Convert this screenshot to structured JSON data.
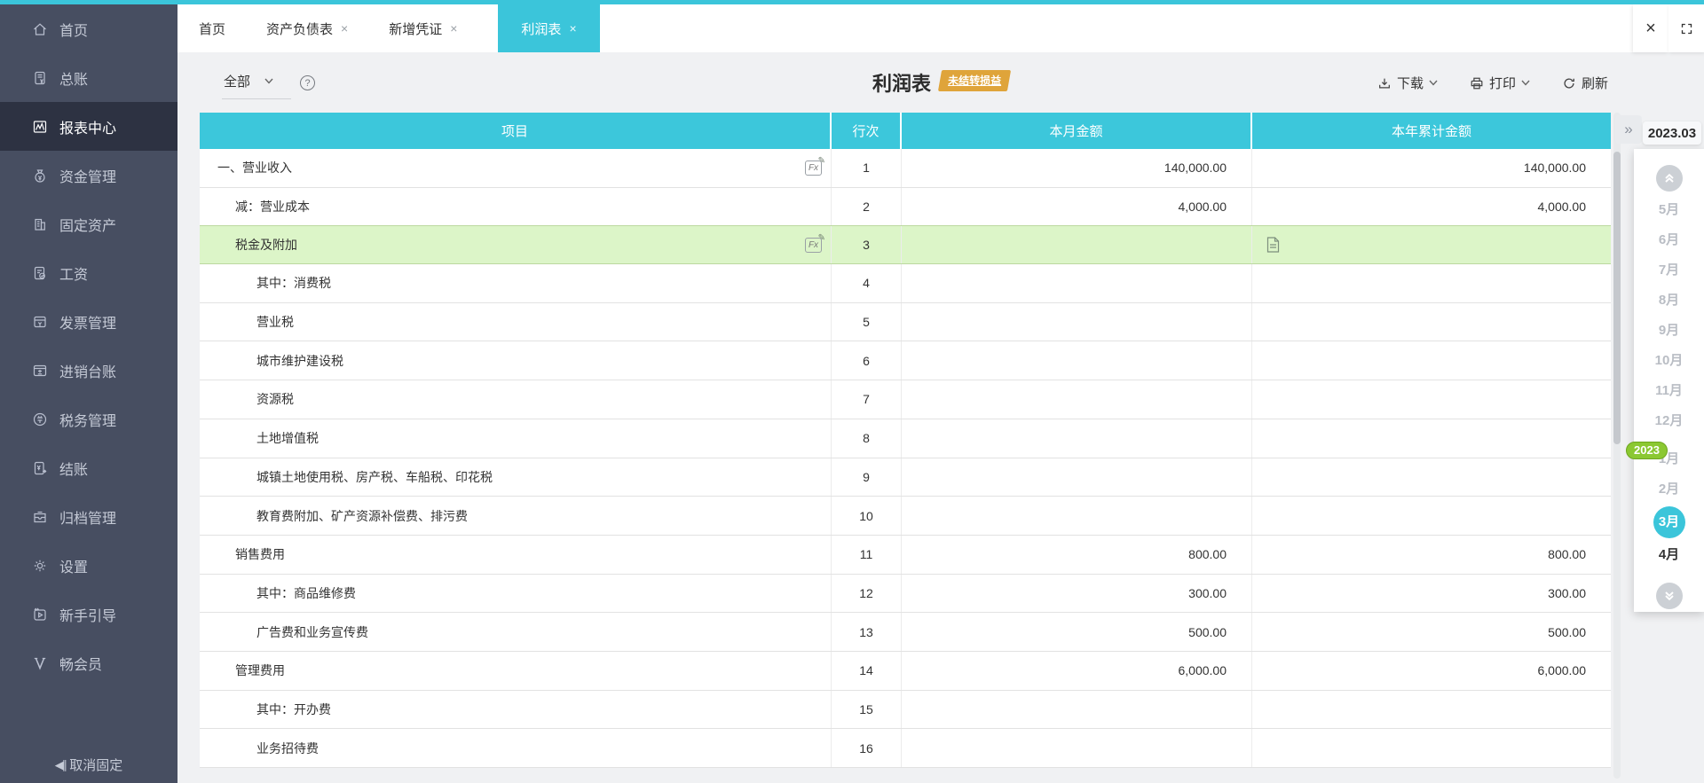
{
  "window": {
    "close_icon": "×",
    "collapse_icon": "»"
  },
  "sidebar": {
    "items": [
      {
        "label": "首页",
        "icon": "home-icon",
        "active": false
      },
      {
        "label": "总账",
        "icon": "general-ledger-icon",
        "active": false
      },
      {
        "label": "报表中心",
        "icon": "report-center-icon",
        "active": true
      },
      {
        "label": "资金管理",
        "icon": "funds-icon",
        "active": false
      },
      {
        "label": "固定资产",
        "icon": "fixed-assets-icon",
        "active": false
      },
      {
        "label": "工资",
        "icon": "payroll-icon",
        "active": false
      },
      {
        "label": "发票管理",
        "icon": "invoice-icon",
        "active": false
      },
      {
        "label": "进销台账",
        "icon": "inventory-ledger-icon",
        "active": false
      },
      {
        "label": "税务管理",
        "icon": "tax-icon",
        "active": false
      },
      {
        "label": "结账",
        "icon": "closing-icon",
        "active": false
      },
      {
        "label": "归档管理",
        "icon": "archive-icon",
        "active": false
      },
      {
        "label": "设置",
        "icon": "settings-icon",
        "active": false
      },
      {
        "label": "新手引导",
        "icon": "beginner-guide-icon",
        "active": false
      },
      {
        "label": "畅会员",
        "icon": "member-icon",
        "active": false
      }
    ],
    "unpin": "取消固定",
    "unpin_glyph": "◀∥"
  },
  "tabs": [
    {
      "label": "首页",
      "closable": false,
      "active": false
    },
    {
      "label": "资产负债表",
      "closable": true,
      "active": false
    },
    {
      "label": "新增凭证",
      "closable": true,
      "active": false
    },
    {
      "label": "利润表",
      "closable": true,
      "active": true
    }
  ],
  "toolbar": {
    "filter_label": "全部",
    "help_symbol": "?",
    "title": "利润表",
    "badge": "未结转损益",
    "download": "下载",
    "print": "打印",
    "refresh": "刷新"
  },
  "table": {
    "columns": [
      "项目",
      "行次",
      "本月金额",
      "本年累计金额"
    ],
    "rows": [
      {
        "item": "一、营业收入",
        "indent": 0,
        "line": "1",
        "month": "140,000.00",
        "ytd": "140,000.00",
        "fx": true,
        "highlight": false,
        "doc": false
      },
      {
        "item": "减：营业成本",
        "indent": 1,
        "line": "2",
        "month": "4,000.00",
        "ytd": "4,000.00",
        "fx": false,
        "highlight": false,
        "doc": false
      },
      {
        "item": "税金及附加",
        "indent": 1,
        "line": "3",
        "month": "",
        "ytd": "",
        "fx": true,
        "highlight": true,
        "doc": true
      },
      {
        "item": "其中：消费税",
        "indent": 2,
        "line": "4",
        "month": "",
        "ytd": "",
        "fx": false,
        "highlight": false,
        "doc": false
      },
      {
        "item": "营业税",
        "indent": 2,
        "line": "5",
        "month": "",
        "ytd": "",
        "fx": false,
        "highlight": false,
        "doc": false
      },
      {
        "item": "城市维护建设税",
        "indent": 2,
        "line": "6",
        "month": "",
        "ytd": "",
        "fx": false,
        "highlight": false,
        "doc": false
      },
      {
        "item": "资源税",
        "indent": 2,
        "line": "7",
        "month": "",
        "ytd": "",
        "fx": false,
        "highlight": false,
        "doc": false
      },
      {
        "item": "土地增值税",
        "indent": 2,
        "line": "8",
        "month": "",
        "ytd": "",
        "fx": false,
        "highlight": false,
        "doc": false
      },
      {
        "item": "城镇土地使用税、房产税、车船税、印花税",
        "indent": 2,
        "line": "9",
        "month": "",
        "ytd": "",
        "fx": false,
        "highlight": false,
        "doc": false
      },
      {
        "item": "教育费附加、矿产资源补偿费、排污费",
        "indent": 2,
        "line": "10",
        "month": "",
        "ytd": "",
        "fx": false,
        "highlight": false,
        "doc": false
      },
      {
        "item": "销售费用",
        "indent": 1,
        "line": "11",
        "month": "800.00",
        "ytd": "800.00",
        "fx": false,
        "highlight": false,
        "doc": false
      },
      {
        "item": "其中：商品维修费",
        "indent": 2,
        "line": "12",
        "month": "300.00",
        "ytd": "300.00",
        "fx": false,
        "highlight": false,
        "doc": false
      },
      {
        "item": "广告费和业务宣传费",
        "indent": 2,
        "line": "13",
        "month": "500.00",
        "ytd": "500.00",
        "fx": false,
        "highlight": false,
        "doc": false
      },
      {
        "item": "管理费用",
        "indent": 1,
        "line": "14",
        "month": "6,000.00",
        "ytd": "6,000.00",
        "fx": false,
        "highlight": false,
        "doc": false
      },
      {
        "item": "其中：开办费",
        "indent": 2,
        "line": "15",
        "month": "",
        "ytd": "",
        "fx": false,
        "highlight": false,
        "doc": false
      },
      {
        "item": "业务招待费",
        "indent": 2,
        "line": "16",
        "month": "",
        "ytd": "",
        "fx": false,
        "highlight": false,
        "doc": false
      }
    ]
  },
  "period": {
    "current": "2023.03",
    "year_badge": "2023",
    "months": [
      {
        "label": "5月"
      },
      {
        "label": "6月"
      },
      {
        "label": "7月"
      },
      {
        "label": "8月"
      },
      {
        "label": "9月"
      },
      {
        "label": "10月"
      },
      {
        "label": "11月"
      },
      {
        "label": "12月"
      },
      {
        "label": "1月",
        "year_break": true
      },
      {
        "label": "2月"
      },
      {
        "label": "3月",
        "active": true
      },
      {
        "label": "4月",
        "emph": true
      }
    ]
  },
  "colors": {
    "accent_cyan": "#3bc5da",
    "table_header": "#3cc7db",
    "highlight_row_green": "#dcf5c8",
    "badge_gold": "#dfa43a",
    "year_badge_green": "#8bc832",
    "sidebar_bg": "#474e61",
    "sidebar_active_bg": "#2d3242"
  }
}
